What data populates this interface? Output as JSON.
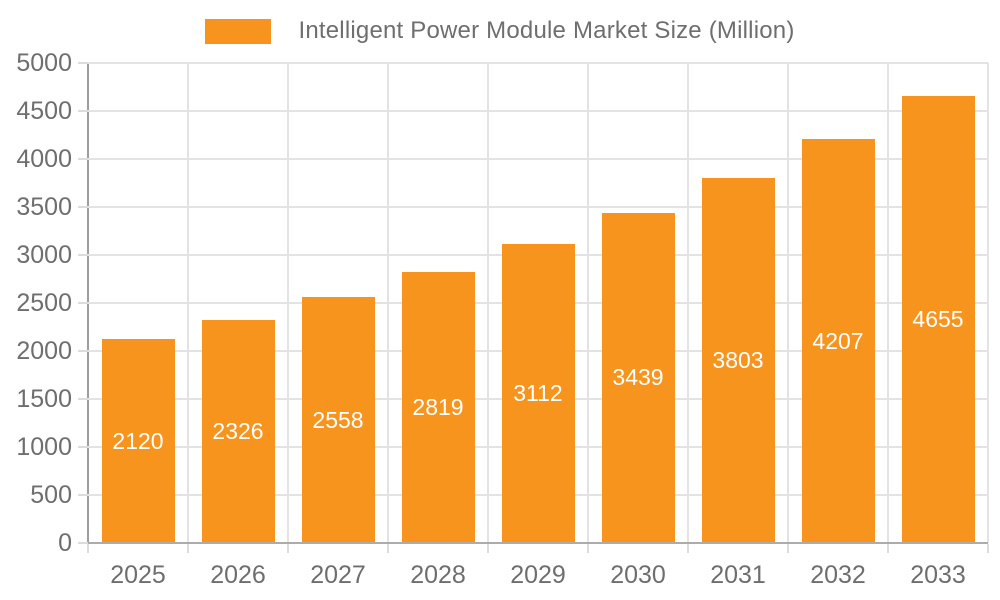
{
  "chart_data": {
    "type": "bar",
    "title": "Intelligent Power Module Market Size (Million)",
    "categories": [
      "2025",
      "2026",
      "2027",
      "2028",
      "2029",
      "2030",
      "2031",
      "2032",
      "2033"
    ],
    "values": [
      2120,
      2326,
      2558,
      2819,
      3112,
      3439,
      3803,
      4207,
      4655
    ],
    "xlabel": "",
    "ylabel": "",
    "ylim": [
      0,
      5000
    ],
    "ytick_step": 500,
    "ytick_labels": [
      "0",
      "500",
      "1000",
      "1500",
      "2000",
      "2500",
      "3000",
      "3500",
      "4000",
      "4500",
      "5000"
    ],
    "grid": "on",
    "legend_position": "top-center",
    "colors": {
      "bar": "#F7941E",
      "grid": "#E3E3E3",
      "tick": "#DCDCDC",
      "y_axis_line": "#9E9E9E",
      "x_axis_line": "#ACACAC",
      "axis_text": "#6E6E6E",
      "bar_label_text": "#FFFFFF",
      "background": "#FFFFFF"
    }
  }
}
